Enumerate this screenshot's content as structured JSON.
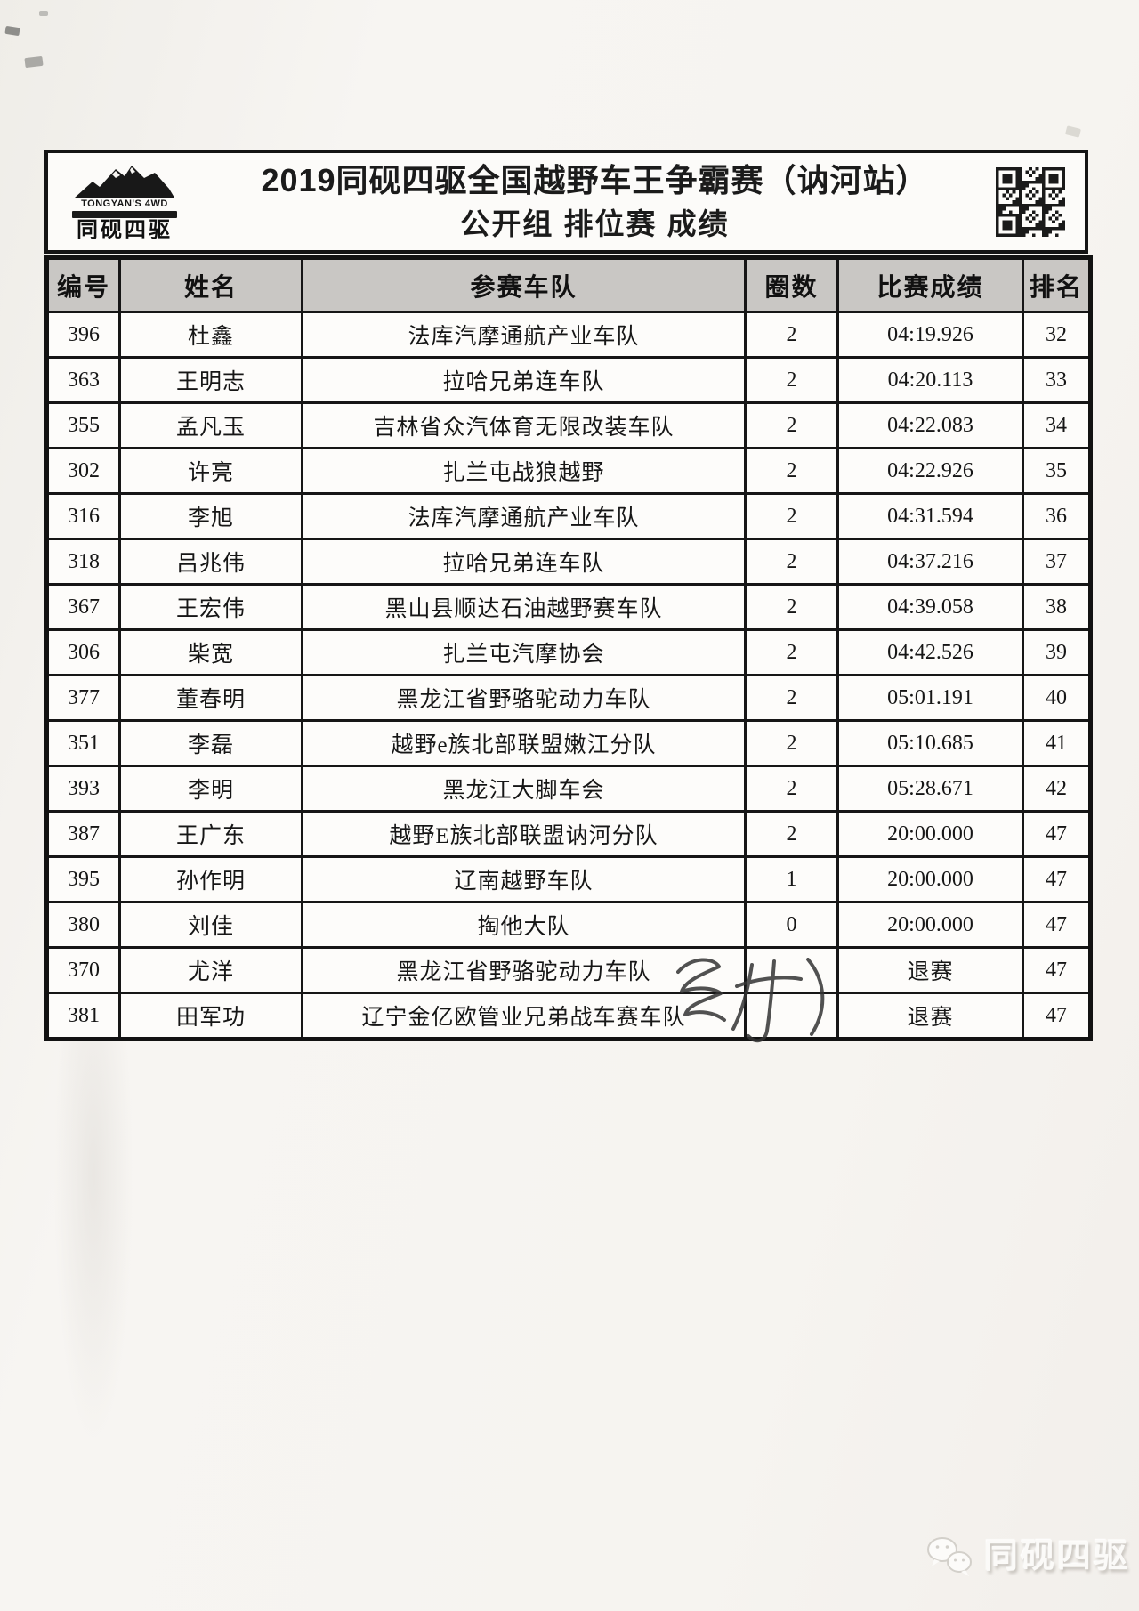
{
  "header": {
    "logo": {
      "brand_en": "TONGYAN'S 4WD",
      "brand_cn": "同砚四驱"
    },
    "title_line1": "2019同砚四驱全国越野车王争霸赛（讷河站）",
    "title_line2": "公开组 排位赛 成绩"
  },
  "table": {
    "columns": [
      "编号",
      "姓名",
      "参赛车队",
      "圈数",
      "比赛成绩",
      "排名"
    ],
    "rows": [
      {
        "number": "396",
        "name": "杜鑫",
        "team": "法库汽摩通航产业车队",
        "laps": "2",
        "result": "04:19.926",
        "rank": "32"
      },
      {
        "number": "363",
        "name": "王明志",
        "team": "拉哈兄弟连车队",
        "laps": "2",
        "result": "04:20.113",
        "rank": "33"
      },
      {
        "number": "355",
        "name": "孟凡玉",
        "team": "吉林省众汽体育无限改装车队",
        "laps": "2",
        "result": "04:22.083",
        "rank": "34"
      },
      {
        "number": "302",
        "name": "许亮",
        "team": "扎兰屯战狼越野",
        "laps": "2",
        "result": "04:22.926",
        "rank": "35"
      },
      {
        "number": "316",
        "name": "李旭",
        "team": "法库汽摩通航产业车队",
        "laps": "2",
        "result": "04:31.594",
        "rank": "36"
      },
      {
        "number": "318",
        "name": "吕兆伟",
        "team": "拉哈兄弟连车队",
        "laps": "2",
        "result": "04:37.216",
        "rank": "37"
      },
      {
        "number": "367",
        "name": "王宏伟",
        "team": "黑山县顺达石油越野赛车队",
        "laps": "2",
        "result": "04:39.058",
        "rank": "38"
      },
      {
        "number": "306",
        "name": "柴宽",
        "team": "扎兰屯汽摩协会",
        "laps": "2",
        "result": "04:42.526",
        "rank": "39"
      },
      {
        "number": "377",
        "name": "董春明",
        "team": "黑龙江省野骆驼动力车队",
        "laps": "2",
        "result": "05:01.191",
        "rank": "40"
      },
      {
        "number": "351",
        "name": "李磊",
        "team": "越野e族北部联盟嫩江分队",
        "laps": "2",
        "result": "05:10.685",
        "rank": "41"
      },
      {
        "number": "393",
        "name": "李明",
        "team": "黑龙江大脚车会",
        "laps": "2",
        "result": "05:28.671",
        "rank": "42"
      },
      {
        "number": "387",
        "name": "王广东",
        "team": "越野E族北部联盟讷河分队",
        "laps": "2",
        "result": "20:00.000",
        "rank": "47"
      },
      {
        "number": "395",
        "name": "孙作明",
        "team": "辽南越野车队",
        "laps": "1",
        "result": "20:00.000",
        "rank": "47"
      },
      {
        "number": "380",
        "name": "刘佳",
        "team": "掏他大队",
        "laps": "0",
        "result": "20:00.000",
        "rank": "47"
      },
      {
        "number": "370",
        "name": "尤洋",
        "team": "黑龙江省野骆驼动力车队",
        "laps": "",
        "result": "退赛",
        "rank": "47"
      },
      {
        "number": "381",
        "name": "田军功",
        "team": "辽宁金亿欧管业兄弟战车赛车队",
        "laps": "",
        "result": "退赛",
        "rank": "47"
      }
    ]
  },
  "footer": {
    "watermark_text": "同砚四驱"
  },
  "colors": {
    "paper": "#f6f4f0",
    "table_border": "#161616",
    "header_row_bg": "#c9c7c4",
    "text": "#161616",
    "watermark": "#fbfaf8"
  }
}
